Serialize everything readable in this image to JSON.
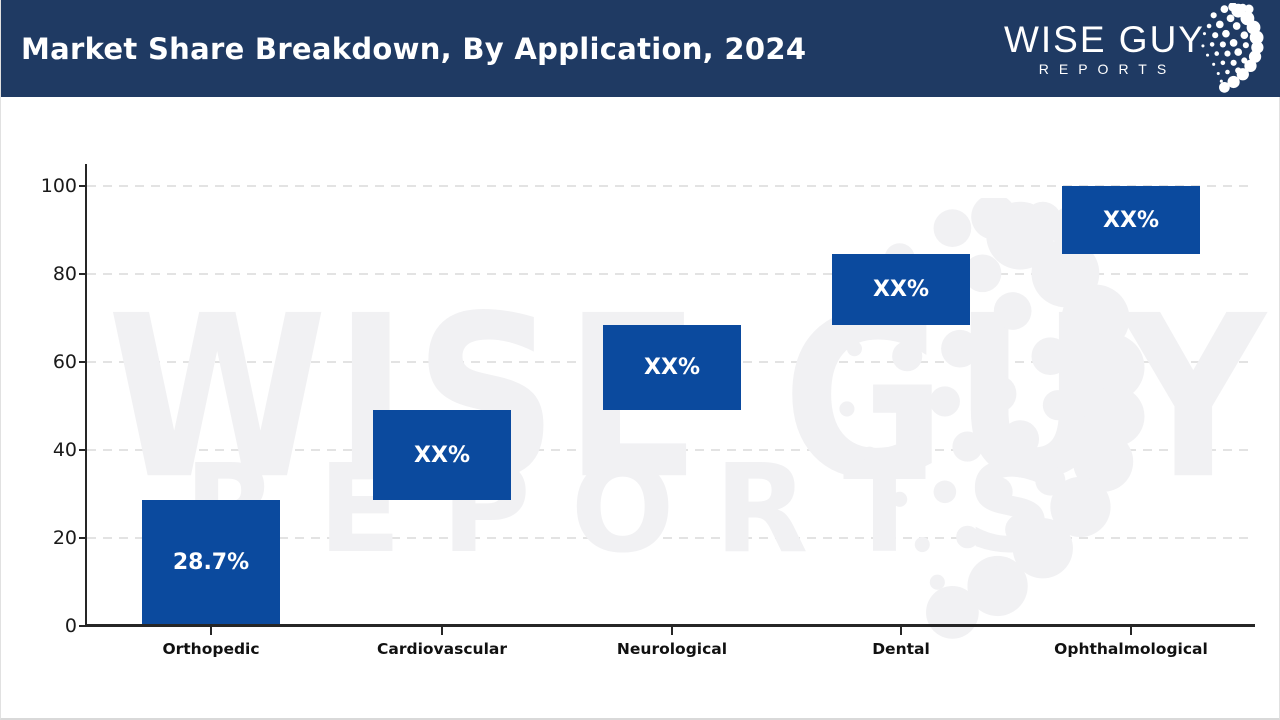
{
  "header": {
    "title": "Market Share Breakdown, By Application, 2024",
    "logo": {
      "name": "WISE GUY",
      "subtitle": "REPORTS"
    }
  },
  "watermark": {
    "line1": "WISE GUY",
    "line2": "REPORTS"
  },
  "colors": {
    "header_bg": "#1f3a63",
    "bar": "#0b4a9e",
    "bar_label": "#ffffff",
    "grid": "#e3e3e3",
    "axis": "#262626",
    "watermark": "#f1f1f3"
  },
  "chart_data": {
    "type": "bar",
    "subtype": "waterfall",
    "title": "Market Share Breakdown, By Application, 2024",
    "xlabel": "",
    "ylabel": "",
    "ylim": [
      0,
      100
    ],
    "yticks": [
      0,
      20,
      40,
      60,
      80,
      100
    ],
    "grid": "horizontal-dashed",
    "legend": "none",
    "categories": [
      "Orthopedic",
      "Cardiovascular",
      "Neurological",
      "Dental",
      "Ophthalmological"
    ],
    "series": [
      {
        "name": "Market Share (%)",
        "segments": [
          {
            "category": "Orthopedic",
            "start": 0,
            "end": 28.7,
            "label": "28.7%"
          },
          {
            "category": "Cardiovascular",
            "start": 28.7,
            "end": 49.0,
            "label": "XX%"
          },
          {
            "category": "Neurological",
            "start": 49.0,
            "end": 68.5,
            "label": "XX%"
          },
          {
            "category": "Dental",
            "start": 68.5,
            "end": 84.5,
            "label": "XX%"
          },
          {
            "category": "Ophthalmological",
            "start": 84.5,
            "end": 100.0,
            "label": "XX%"
          }
        ]
      }
    ]
  }
}
